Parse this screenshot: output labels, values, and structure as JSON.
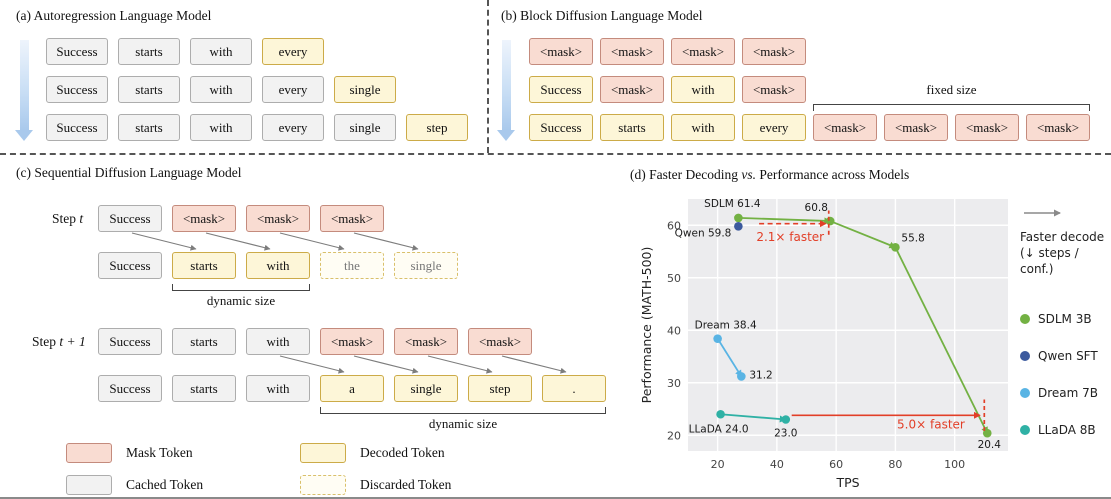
{
  "colors": {
    "mask_bg": "#f9dcd2",
    "mask_border": "#c48b7d",
    "decoded_bg": "#fdf6d8",
    "decoded_border": "#ccab48",
    "cached_bg": "#f2f2f2",
    "cached_border": "#adadad",
    "discarded_bg": "#fffdf4",
    "discarded_border": "#d9c06b",
    "accent_red": "#e23f28"
  },
  "panels": {
    "a": {
      "title": "(a) Autoregression Language Model",
      "rows": [
        [
          {
            "text": "Success",
            "type": "cached"
          },
          {
            "text": "starts",
            "type": "cached"
          },
          {
            "text": "with",
            "type": "cached"
          },
          {
            "text": "every",
            "type": "decoded"
          }
        ],
        [
          {
            "text": "Success",
            "type": "cached"
          },
          {
            "text": "starts",
            "type": "cached"
          },
          {
            "text": "with",
            "type": "cached"
          },
          {
            "text": "every",
            "type": "cached"
          },
          {
            "text": "single",
            "type": "decoded"
          }
        ],
        [
          {
            "text": "Success",
            "type": "cached"
          },
          {
            "text": "starts",
            "type": "cached"
          },
          {
            "text": "with",
            "type": "cached"
          },
          {
            "text": "every",
            "type": "cached"
          },
          {
            "text": "single",
            "type": "cached"
          },
          {
            "text": "step",
            "type": "decoded"
          }
        ]
      ]
    },
    "b": {
      "title": "(b) Block Diffusion Language Model",
      "bracket_label": "fixed size",
      "rows": [
        [
          {
            "text": "<mask>",
            "type": "mask"
          },
          {
            "text": "<mask>",
            "type": "mask"
          },
          {
            "text": "<mask>",
            "type": "mask"
          },
          {
            "text": "<mask>",
            "type": "mask"
          }
        ],
        [
          {
            "text": "Success",
            "type": "decoded"
          },
          {
            "text": "<mask>",
            "type": "mask"
          },
          {
            "text": "with",
            "type": "decoded"
          },
          {
            "text": "<mask>",
            "type": "mask"
          }
        ],
        [
          {
            "text": "Success",
            "type": "decoded"
          },
          {
            "text": "starts",
            "type": "decoded"
          },
          {
            "text": "with",
            "type": "decoded"
          },
          {
            "text": "every",
            "type": "decoded"
          },
          {
            "text": "<mask>",
            "type": "mask"
          },
          {
            "text": "<mask>",
            "type": "mask"
          },
          {
            "text": "<mask>",
            "type": "mask"
          },
          {
            "text": "<mask>",
            "type": "mask"
          }
        ]
      ]
    },
    "c": {
      "title": "(c) Sequential Diffusion Language Model",
      "steps": [
        {
          "label_prefix": "Step ",
          "label_var": "t",
          "top_row": [
            {
              "text": "Success",
              "type": "cached"
            },
            {
              "text": "<mask>",
              "type": "mask"
            },
            {
              "text": "<mask>",
              "type": "mask"
            },
            {
              "text": "<mask>",
              "type": "mask"
            }
          ],
          "bottom_row": [
            {
              "text": "Success",
              "type": "cached"
            },
            {
              "text": "starts",
              "type": "decoded"
            },
            {
              "text": "with",
              "type": "decoded"
            },
            {
              "text": "the",
              "type": "discarded"
            },
            {
              "text": "single",
              "type": "discarded"
            }
          ],
          "bracket_label": "dynamic size"
        },
        {
          "label_prefix": "Step ",
          "label_var": "t + 1",
          "top_row": [
            {
              "text": "Success",
              "type": "cached"
            },
            {
              "text": "starts",
              "type": "cached"
            },
            {
              "text": "with",
              "type": "cached"
            },
            {
              "text": "<mask>",
              "type": "mask"
            },
            {
              "text": "<mask>",
              "type": "mask"
            },
            {
              "text": "<mask>",
              "type": "mask"
            }
          ],
          "bottom_row": [
            {
              "text": "Success",
              "type": "cached"
            },
            {
              "text": "starts",
              "type": "cached"
            },
            {
              "text": "with",
              "type": "cached"
            },
            {
              "text": "a",
              "type": "decoded"
            },
            {
              "text": "single",
              "type": "decoded"
            },
            {
              "text": "step",
              "type": "decoded"
            },
            {
              "text": ".",
              "type": "decoded"
            }
          ],
          "bracket_label": "dynamic size"
        }
      ],
      "legend": [
        {
          "type": "mask",
          "label": "Mask Token"
        },
        {
          "type": "decoded",
          "label": "Decoded Token"
        },
        {
          "type": "cached",
          "label": "Cached Token"
        },
        {
          "type": "discarded",
          "label": "Discarded Token"
        }
      ]
    },
    "d": {
      "title_parts": [
        "(d) Faster Decoding ",
        "vs.",
        " Performance across Models"
      ],
      "legend": {
        "note": [
          "Faster decode",
          "(↓ steps / conf.)"
        ],
        "items": [
          {
            "label": "SDLM 3B",
            "color": "#73b143"
          },
          {
            "label": "Qwen SFT",
            "color": "#3c5a9e"
          },
          {
            "label": "Dream 7B",
            "color": "#59b4e4"
          },
          {
            "label": "LLaDA 8B",
            "color": "#2fb1a5"
          }
        ]
      }
    }
  },
  "chart_data": {
    "type": "scatter",
    "title": "(d) Faster Decoding vs. Performance across Models",
    "xlabel": "TPS",
    "ylabel": "Performance (MATH-500)",
    "xlim": [
      10,
      118
    ],
    "ylim": [
      17,
      65
    ],
    "xticks": [
      20,
      40,
      60,
      80,
      100
    ],
    "yticks": [
      20,
      30,
      40,
      50,
      60
    ],
    "grid": true,
    "legend_position": "right",
    "series": [
      {
        "name": "SDLM 3B",
        "color": "#73b143",
        "arrows": true,
        "points": [
          [
            27,
            61.4
          ],
          [
            58,
            60.8
          ],
          [
            80,
            55.8
          ],
          [
            111,
            20.4
          ]
        ],
        "labels": [
          {
            "text": "SDLM 61.4",
            "at": [
              27,
              61.4
            ],
            "dx": -6,
            "dy": -11,
            "anchor": "middle"
          },
          {
            "text": "60.8",
            "at": [
              58,
              60.8
            ],
            "dx": -14,
            "dy": -10,
            "anchor": "middle"
          },
          {
            "text": "55.8",
            "at": [
              80,
              55.8
            ],
            "dx": 6,
            "dy": -6,
            "anchor": "start"
          },
          {
            "text": "20.4",
            "at": [
              111,
              20.4
            ],
            "dx": 2,
            "dy": 15,
            "anchor": "middle"
          }
        ]
      },
      {
        "name": "Qwen SFT",
        "color": "#3c5a9e",
        "arrows": false,
        "points": [
          [
            27,
            59.8
          ]
        ],
        "labels": [
          {
            "text": "Qwen 59.8",
            "at": [
              27,
              59.8
            ],
            "dx": -7,
            "dy": 10,
            "anchor": "end"
          }
        ]
      },
      {
        "name": "Dream 7B",
        "color": "#59b4e4",
        "arrows": true,
        "points": [
          [
            20,
            38.4
          ],
          [
            28,
            31.2
          ]
        ],
        "labels": [
          {
            "text": "Dream 38.4",
            "at": [
              20,
              38.4
            ],
            "dx": 8,
            "dy": -10,
            "anchor": "middle"
          },
          {
            "text": "31.2",
            "at": [
              28,
              31.2
            ],
            "dx": 8,
            "dy": 2,
            "anchor": "start"
          }
        ]
      },
      {
        "name": "LLaDA 8B",
        "color": "#2fb1a5",
        "arrows": true,
        "points": [
          [
            21,
            24.0
          ],
          [
            43,
            23.0
          ]
        ],
        "labels": [
          {
            "text": "LLaDA 24.0",
            "at": [
              21,
              24.0
            ],
            "dx": -2,
            "dy": 18,
            "anchor": "middle"
          },
          {
            "text": "23.0",
            "at": [
              43,
              23.0
            ],
            "dx": 0,
            "dy": 17,
            "anchor": "middle"
          }
        ]
      }
    ],
    "annotations": [
      {
        "type": "arrow",
        "from": [
          34,
          60.3
        ],
        "to": [
          56.5,
          60.3
        ],
        "dashed": true,
        "color": "#e23f28"
      },
      {
        "type": "vline",
        "x": 57.5,
        "y1": 58.2,
        "y2": 62.8,
        "dashed": true,
        "color": "#e23f28"
      },
      {
        "type": "text",
        "text": "2.1× faster",
        "x": 44.5,
        "y": 57.0,
        "color": "#e23f28"
      },
      {
        "type": "arrow",
        "from": [
          45,
          23.8
        ],
        "to": [
          108.5,
          23.8
        ],
        "dashed": false,
        "color": "#e23f28"
      },
      {
        "type": "vline",
        "x": 110,
        "y1": 20.8,
        "y2": 26.8,
        "dashed": true,
        "color": "#e23f28"
      },
      {
        "type": "text",
        "text": "5.0× faster",
        "x": 92,
        "y": 21.3,
        "color": "#e23f28"
      }
    ]
  }
}
